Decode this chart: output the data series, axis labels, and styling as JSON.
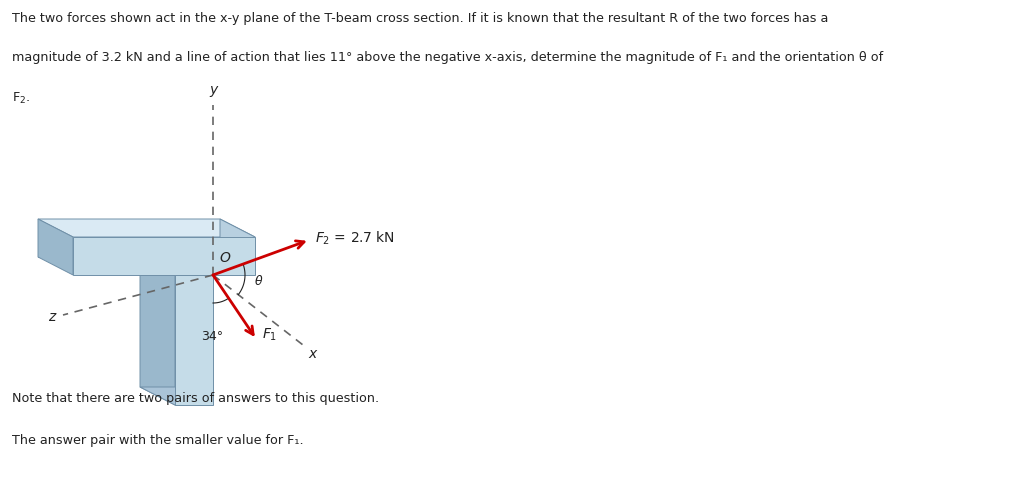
{
  "bg_color": "#ffffff",
  "arrow_color": "#cc0000",
  "note1": "Note that there are two pairs of answers to this question.",
  "note2": "The answer pair with the smaller value for F₁.",
  "F2_label": "$F_2$ = 2.7 kN",
  "F1_label": "$F_1$",
  "theta_label": "θ",
  "angle_34_label": "34°",
  "O_label": "O",
  "x_label": "x",
  "y_label": "y",
  "z_label": "z",
  "face_front": "#c5dce8",
  "face_top": "#daeaf4",
  "face_left": "#9ab8cc",
  "face_right": "#b8d0e0",
  "face_back": "#aac4d8",
  "edge_color": "#7090a8",
  "dashed_color": "#666666",
  "text_color": "#222222",
  "problem_line1": "The two forces shown act in the x-y plane of the T-beam cross section. If it is known that the resultant R of the two forces has a",
  "problem_line2": "magnitude of 3.2 kN and a line of action that lies 11° above the negative x-axis, determine the magnitude of F₁ and the orientation θ of",
  "problem_line3": "F₂."
}
